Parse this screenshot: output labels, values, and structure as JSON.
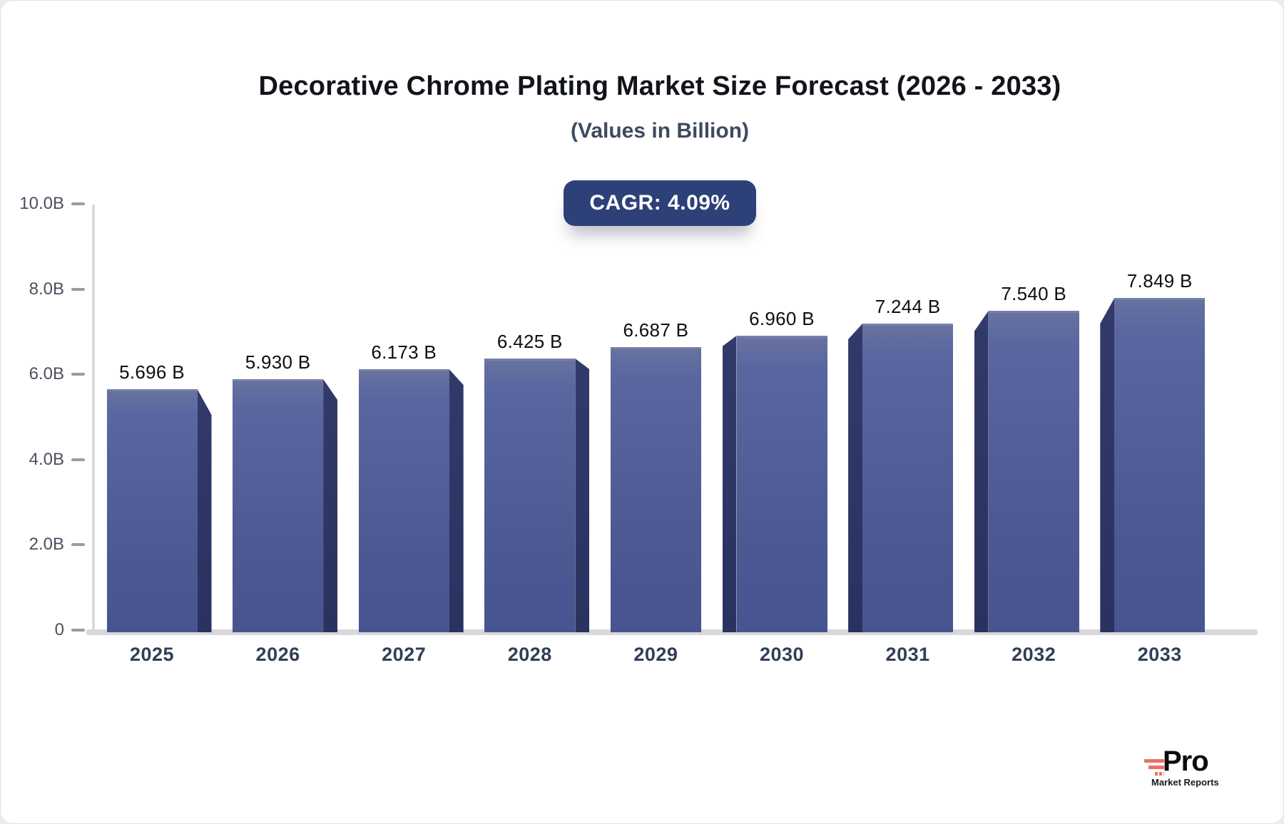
{
  "header": {
    "title": "Decorative Chrome Plating Market Size Forecast (2026 - 2033)",
    "subtitle": "(Values in Billion)",
    "cagr_badge": "CAGR: 4.09%"
  },
  "chart_data": {
    "type": "bar",
    "title": "Decorative Chrome Plating Market Size Forecast (2026 - 2033)",
    "subtitle": "(Values in Billion)",
    "categories": [
      "2025",
      "2026",
      "2027",
      "2028",
      "2029",
      "2030",
      "2031",
      "2032",
      "2033"
    ],
    "values": [
      5.696,
      5.93,
      6.173,
      6.425,
      6.687,
      6.96,
      7.244,
      7.54,
      7.849
    ],
    "bar_labels": [
      "5.696 B",
      "5.930 B",
      "6.173 B",
      "6.425 B",
      "6.687 B",
      "6.960 B",
      "7.244 B",
      "7.540 B",
      "7.849 B"
    ],
    "unit": "Billion",
    "xlabel": "",
    "ylabel": "",
    "ylim": [
      0,
      10
    ],
    "y_tick_values": [
      0,
      2,
      4,
      6,
      8,
      10
    ],
    "y_tick_labels": [
      "0",
      "2.0B",
      "4.0B",
      "6.0B",
      "8.0B",
      "10.0B"
    ],
    "grid": false,
    "legend": false,
    "colors": {
      "bar_face_top": "#67729f",
      "bar_face_bottom": "#485490",
      "bar_side": "#2a3260",
      "axis": "#d9d9dd",
      "badge_background": "#2e4078",
      "badge_text": "#ffffff",
      "value_label": "#0d0e12",
      "x_label": "#323e57",
      "y_label": "#4b505c"
    }
  },
  "logo": {
    "name": "Pro",
    "subtext": "Market Reports",
    "accent_color": "#ef6f66"
  }
}
